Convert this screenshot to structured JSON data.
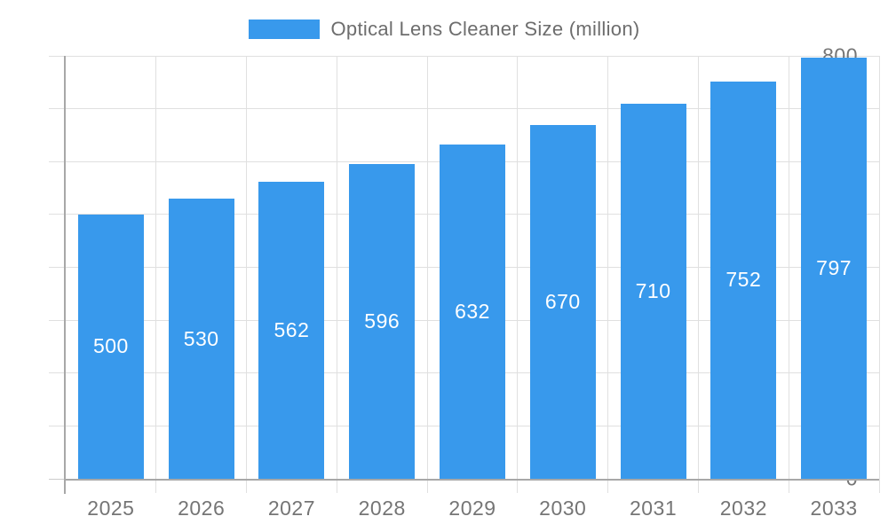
{
  "legend": {
    "label": "Optical Lens Cleaner Size (million)"
  },
  "chart_data": {
    "type": "bar",
    "title": "",
    "categories": [
      "2025",
      "2026",
      "2027",
      "2028",
      "2029",
      "2030",
      "2031",
      "2032",
      "2033"
    ],
    "values": [
      500,
      530,
      562,
      596,
      632,
      670,
      710,
      752,
      797
    ],
    "series_name": "Optical Lens Cleaner Size (million)",
    "data_labels": [
      "500",
      "530",
      "562",
      "596",
      "632",
      "670",
      "710",
      "752",
      "797"
    ],
    "xlabel": "",
    "ylabel": "",
    "ylim": [
      0,
      800
    ],
    "y_ticks": [
      0,
      100,
      200,
      300,
      400,
      500,
      600,
      700,
      800
    ],
    "grid": true,
    "legend_position": "top-center",
    "colors": {
      "bar": "#3899ec",
      "grid": "#e0e0e0",
      "axis": "#a8a8a8",
      "tick": "#cccccc",
      "axis_text": "#757575",
      "legend_text": "#6d6d6d",
      "bar_label_text": "#ffffff"
    }
  }
}
